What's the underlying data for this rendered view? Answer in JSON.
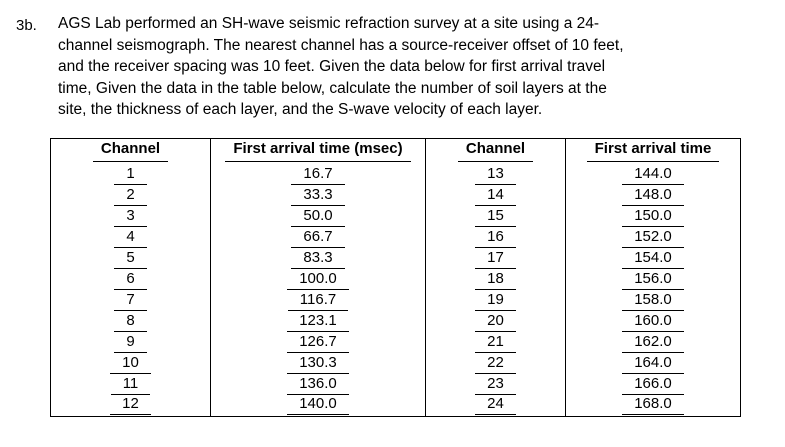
{
  "problem": {
    "number": "3b.",
    "lines": [
      "AGS Lab performed an SH-wave seismic refraction survey at a site using a 24-",
      "channel seismograph. The nearest channel has a source-receiver offset of 10 feet,",
      "and the receiver spacing was 10 feet. Given the data below for first arrival travel",
      "time, Given the data in the table below, calculate the number of soil layers at the",
      "site, the thickness of each layer, and the S-wave velocity of each layer."
    ]
  },
  "table": {
    "headers": [
      "Channel",
      "First arrival time (msec)",
      "Channel",
      "First arrival time"
    ],
    "rows": [
      [
        "1",
        "16.7",
        "13",
        "144.0"
      ],
      [
        "2",
        "33.3",
        "14",
        "148.0"
      ],
      [
        "3",
        "50.0",
        "15",
        "150.0"
      ],
      [
        "4",
        "66.7",
        "16",
        "152.0"
      ],
      [
        "5",
        "83.3",
        "17",
        "154.0"
      ],
      [
        "6",
        "100.0",
        "18",
        "156.0"
      ],
      [
        "7",
        "116.7",
        "19",
        "158.0"
      ],
      [
        "8",
        "123.1",
        "20",
        "160.0"
      ],
      [
        "9",
        "126.7",
        "21",
        "162.0"
      ],
      [
        "10",
        "130.3",
        "22",
        "164.0"
      ],
      [
        "11",
        "136.0",
        "23",
        "166.0"
      ],
      [
        "12",
        "140.0",
        "24",
        "168.0"
      ]
    ]
  }
}
